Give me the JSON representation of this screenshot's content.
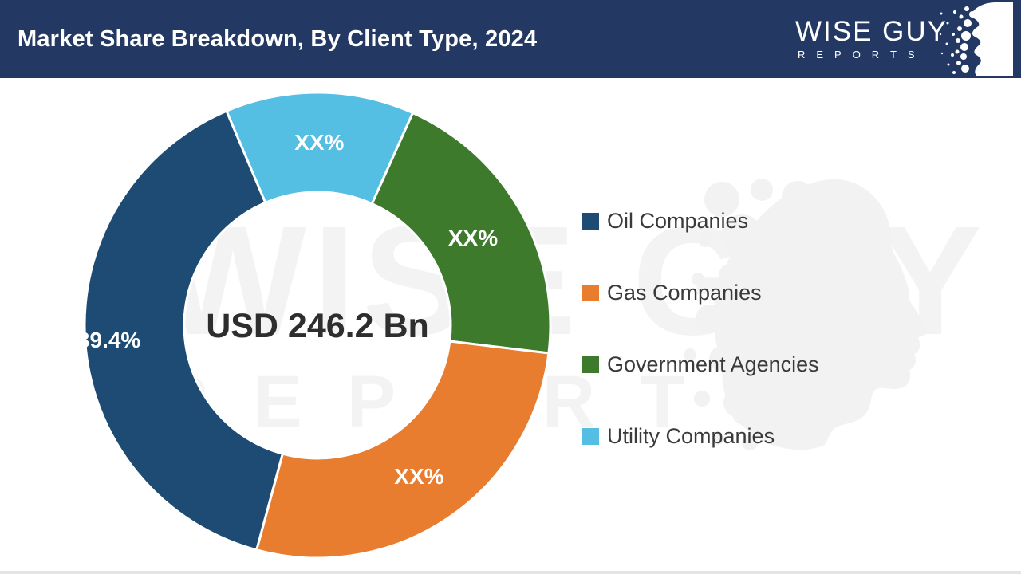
{
  "header": {
    "title": "Market Share Breakdown, By Client Type, 2024",
    "logo": {
      "brand_line1": "WISE GUY",
      "brand_line2": "REPORTS"
    }
  },
  "watermark": {
    "line1": "WISE GUY",
    "line2": "REPORTS"
  },
  "chart_data": {
    "type": "pie",
    "subtype": "donut",
    "title": "Market Share Breakdown, By Client Type, 2024",
    "center_label": "USD 246.2 Bn",
    "legend_position": "right",
    "start_angle_deg": -23,
    "series": [
      {
        "name": "Oil Companies",
        "color": "#1E4B73",
        "value_pct": 39.4,
        "display_label": "39.4%",
        "label_r": 262
      },
      {
        "name": "Gas Companies",
        "color": "#E87D30",
        "value_pct": 27.3,
        "display_label": "XX%",
        "label_r": 228
      },
      {
        "name": "Government Agencies",
        "color": "#3E7A2C",
        "value_pct": 20.2,
        "display_label": "XX%",
        "label_r": 224
      },
      {
        "name": "Utility Companies",
        "color": "#54BEE3",
        "value_pct": 13.1,
        "display_label": "XX%",
        "label_r": 230
      }
    ],
    "draw_order": [
      3,
      2,
      1,
      0
    ]
  }
}
